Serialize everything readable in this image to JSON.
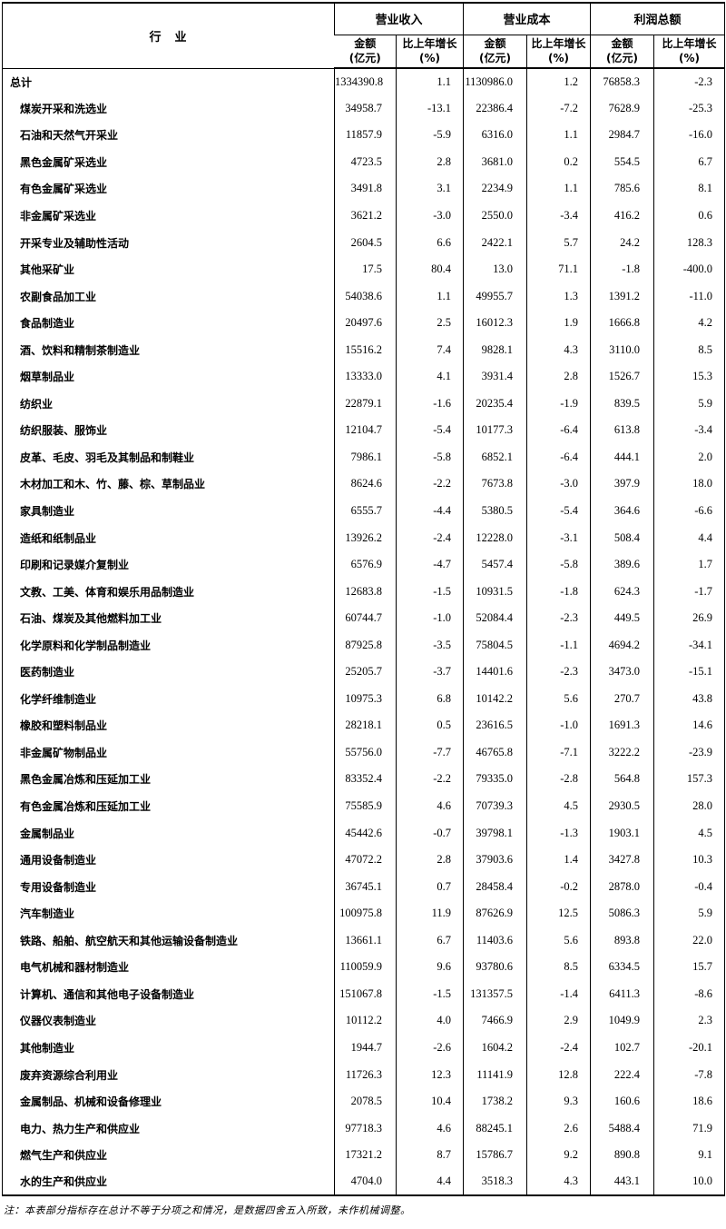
{
  "table": {
    "industry_header": "行　业",
    "groups": [
      {
        "label": "营业收入"
      },
      {
        "label": "营业成本"
      },
      {
        "label": "利润总额"
      }
    ],
    "subheaders": {
      "amount_line1": "金额",
      "amount_line2": "(亿元)",
      "growth_line1": "比上年增长",
      "growth_line2": "(%)"
    },
    "unit_amount": "亿元",
    "unit_growth": "%",
    "rows": [
      {
        "industry": "总计",
        "total": true,
        "values": [
          "1334390.8",
          "1.1",
          "1130986.0",
          "1.2",
          "76858.3",
          "-2.3"
        ]
      },
      {
        "industry": "煤炭开采和洗选业",
        "total": false,
        "values": [
          "34958.7",
          "-13.1",
          "22386.4",
          "-7.2",
          "7628.9",
          "-25.3"
        ]
      },
      {
        "industry": "石油和天然气开采业",
        "total": false,
        "values": [
          "11857.9",
          "-5.9",
          "6316.0",
          "1.1",
          "2984.7",
          "-16.0"
        ]
      },
      {
        "industry": "黑色金属矿采选业",
        "total": false,
        "values": [
          "4723.5",
          "2.8",
          "3681.0",
          "0.2",
          "554.5",
          "6.7"
        ]
      },
      {
        "industry": "有色金属矿采选业",
        "total": false,
        "values": [
          "3491.8",
          "3.1",
          "2234.9",
          "1.1",
          "785.6",
          "8.1"
        ]
      },
      {
        "industry": "非金属矿采选业",
        "total": false,
        "values": [
          "3621.2",
          "-3.0",
          "2550.0",
          "-3.4",
          "416.2",
          "0.6"
        ]
      },
      {
        "industry": "开采专业及辅助性活动",
        "total": false,
        "values": [
          "2604.5",
          "6.6",
          "2422.1",
          "5.7",
          "24.2",
          "128.3"
        ]
      },
      {
        "industry": "其他采矿业",
        "total": false,
        "values": [
          "17.5",
          "80.4",
          "13.0",
          "71.1",
          "-1.8",
          "-400.0"
        ]
      },
      {
        "industry": "农副食品加工业",
        "total": false,
        "values": [
          "54038.6",
          "1.1",
          "49955.7",
          "1.3",
          "1391.2",
          "-11.0"
        ]
      },
      {
        "industry": "食品制造业",
        "total": false,
        "values": [
          "20497.6",
          "2.5",
          "16012.3",
          "1.9",
          "1666.8",
          "4.2"
        ]
      },
      {
        "industry": "酒、饮料和精制茶制造业",
        "total": false,
        "values": [
          "15516.2",
          "7.4",
          "9828.1",
          "4.3",
          "3110.0",
          "8.5"
        ]
      },
      {
        "industry": "烟草制品业",
        "total": false,
        "values": [
          "13333.0",
          "4.1",
          "3931.4",
          "2.8",
          "1526.7",
          "15.3"
        ]
      },
      {
        "industry": "纺织业",
        "total": false,
        "values": [
          "22879.1",
          "-1.6",
          "20235.4",
          "-1.9",
          "839.5",
          "5.9"
        ]
      },
      {
        "industry": "纺织服装、服饰业",
        "total": false,
        "values": [
          "12104.7",
          "-5.4",
          "10177.3",
          "-6.4",
          "613.8",
          "-3.4"
        ]
      },
      {
        "industry": "皮革、毛皮、羽毛及其制品和制鞋业",
        "total": false,
        "values": [
          "7986.1",
          "-5.8",
          "6852.1",
          "-6.4",
          "444.1",
          "2.0"
        ]
      },
      {
        "industry": "木材加工和木、竹、藤、棕、草制品业",
        "total": false,
        "values": [
          "8624.6",
          "-2.2",
          "7673.8",
          "-3.0",
          "397.9",
          "18.0"
        ]
      },
      {
        "industry": "家具制造业",
        "total": false,
        "values": [
          "6555.7",
          "-4.4",
          "5380.5",
          "-5.4",
          "364.6",
          "-6.6"
        ]
      },
      {
        "industry": "造纸和纸制品业",
        "total": false,
        "values": [
          "13926.2",
          "-2.4",
          "12228.0",
          "-3.1",
          "508.4",
          "4.4"
        ]
      },
      {
        "industry": "印刷和记录媒介复制业",
        "total": false,
        "values": [
          "6576.9",
          "-4.7",
          "5457.4",
          "-5.8",
          "389.6",
          "1.7"
        ]
      },
      {
        "industry": "文教、工美、体育和娱乐用品制造业",
        "total": false,
        "values": [
          "12683.8",
          "-1.5",
          "10931.5",
          "-1.8",
          "624.3",
          "-1.7"
        ]
      },
      {
        "industry": "石油、煤炭及其他燃料加工业",
        "total": false,
        "values": [
          "60744.7",
          "-1.0",
          "52084.4",
          "-2.3",
          "449.5",
          "26.9"
        ]
      },
      {
        "industry": "化学原料和化学制品制造业",
        "total": false,
        "values": [
          "87925.8",
          "-3.5",
          "75804.5",
          "-1.1",
          "4694.2",
          "-34.1"
        ]
      },
      {
        "industry": "医药制造业",
        "total": false,
        "values": [
          "25205.7",
          "-3.7",
          "14401.6",
          "-2.3",
          "3473.0",
          "-15.1"
        ]
      },
      {
        "industry": "化学纤维制造业",
        "total": false,
        "values": [
          "10975.3",
          "6.8",
          "10142.2",
          "5.6",
          "270.7",
          "43.8"
        ]
      },
      {
        "industry": "橡胶和塑料制品业",
        "total": false,
        "values": [
          "28218.1",
          "0.5",
          "23616.5",
          "-1.0",
          "1691.3",
          "14.6"
        ]
      },
      {
        "industry": "非金属矿物制品业",
        "total": false,
        "values": [
          "55756.0",
          "-7.7",
          "46765.8",
          "-7.1",
          "3222.2",
          "-23.9"
        ]
      },
      {
        "industry": "黑色金属冶炼和压延加工业",
        "total": false,
        "values": [
          "83352.4",
          "-2.2",
          "79335.0",
          "-2.8",
          "564.8",
          "157.3"
        ]
      },
      {
        "industry": "有色金属冶炼和压延加工业",
        "total": false,
        "values": [
          "75585.9",
          "4.6",
          "70739.3",
          "4.5",
          "2930.5",
          "28.0"
        ]
      },
      {
        "industry": "金属制品业",
        "total": false,
        "values": [
          "45442.6",
          "-0.7",
          "39798.1",
          "-1.3",
          "1903.1",
          "4.5"
        ]
      },
      {
        "industry": "通用设备制造业",
        "total": false,
        "values": [
          "47072.2",
          "2.8",
          "37903.6",
          "1.4",
          "3427.8",
          "10.3"
        ]
      },
      {
        "industry": "专用设备制造业",
        "total": false,
        "values": [
          "36745.1",
          "0.7",
          "28458.4",
          "-0.2",
          "2878.0",
          "-0.4"
        ]
      },
      {
        "industry": "汽车制造业",
        "total": false,
        "values": [
          "100975.8",
          "11.9",
          "87626.9",
          "12.5",
          "5086.3",
          "5.9"
        ]
      },
      {
        "industry": "铁路、船舶、航空航天和其他运输设备制造业",
        "total": false,
        "values": [
          "13661.1",
          "6.7",
          "11403.6",
          "5.6",
          "893.8",
          "22.0"
        ]
      },
      {
        "industry": "电气机械和器材制造业",
        "total": false,
        "values": [
          "110059.9",
          "9.6",
          "93780.6",
          "8.5",
          "6334.5",
          "15.7"
        ]
      },
      {
        "industry": "计算机、通信和其他电子设备制造业",
        "total": false,
        "values": [
          "151067.8",
          "-1.5",
          "131357.5",
          "-1.4",
          "6411.3",
          "-8.6"
        ]
      },
      {
        "industry": "仪器仪表制造业",
        "total": false,
        "values": [
          "10112.2",
          "4.0",
          "7466.9",
          "2.9",
          "1049.9",
          "2.3"
        ]
      },
      {
        "industry": "其他制造业",
        "total": false,
        "values": [
          "1944.7",
          "-2.6",
          "1604.2",
          "-2.4",
          "102.7",
          "-20.1"
        ]
      },
      {
        "industry": "废弃资源综合利用业",
        "total": false,
        "values": [
          "11726.3",
          "12.3",
          "11141.9",
          "12.8",
          "222.4",
          "-7.8"
        ]
      },
      {
        "industry": "金属制品、机械和设备修理业",
        "total": false,
        "values": [
          "2078.5",
          "10.4",
          "1738.2",
          "9.3",
          "160.6",
          "18.6"
        ]
      },
      {
        "industry": "电力、热力生产和供应业",
        "total": false,
        "values": [
          "97718.3",
          "4.6",
          "88245.1",
          "2.6",
          "5488.4",
          "71.9"
        ]
      },
      {
        "industry": "燃气生产和供应业",
        "total": false,
        "values": [
          "17321.2",
          "8.7",
          "15786.7",
          "9.2",
          "890.8",
          "9.1"
        ]
      },
      {
        "industry": "水的生产和供应业",
        "total": false,
        "values": [
          "4704.0",
          "4.4",
          "3518.3",
          "4.3",
          "443.1",
          "10.0"
        ]
      }
    ],
    "note": "注：本表部分指标存在总计不等于分项之和情况，是数据四舍五入所致，未作机械调整。"
  }
}
